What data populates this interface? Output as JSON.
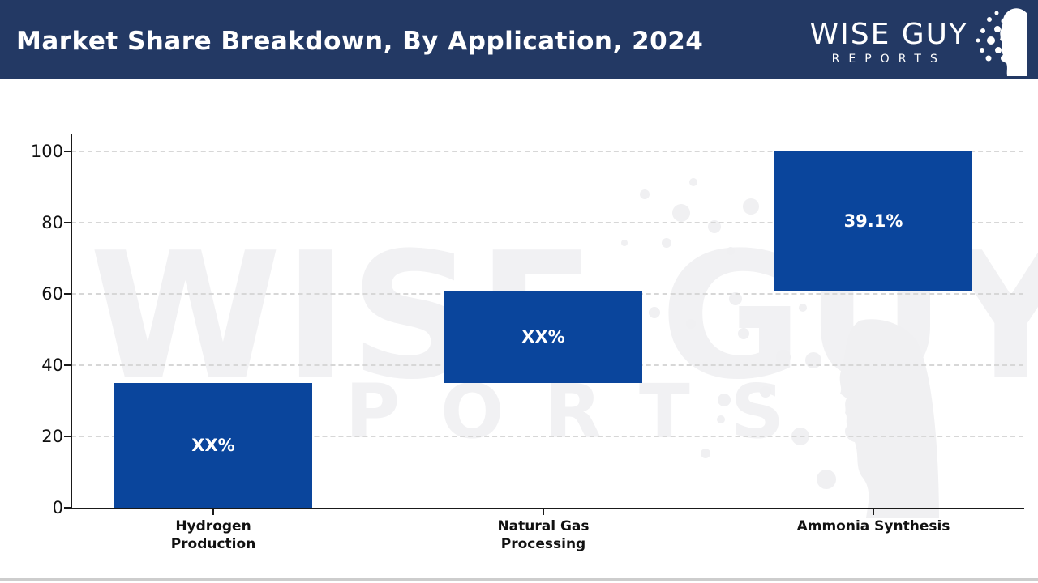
{
  "header": {
    "title": "Market Share Breakdown, By Application, 2024",
    "logo": {
      "line1": "WISE GUY",
      "line2": "REPORTS",
      "face_icon": "dotted-head-profile-icon"
    }
  },
  "watermark": {
    "line1": "WISE GUY",
    "line2": "REPORTS",
    "face_icon": "dotted-head-profile-watermark"
  },
  "colors": {
    "header_background": "#233964",
    "bar_fill": "#0a459c",
    "bar_label_text": "#ffffff",
    "gridline": "#d7d7d7",
    "axis": "#1a1a1a",
    "watermark_gray": "#f1f1f3",
    "footer_rule": "#cdcdcd"
  },
  "chart_data": {
    "type": "bar",
    "variant": "floating-waterfall-segments",
    "title": "Market Share Breakdown, By Application, 2024",
    "categories": [
      "Hydrogen Production",
      "Natural Gas Processing",
      "Ammonia Synthesis"
    ],
    "category_label_lines": [
      [
        "Hydrogen",
        "Production"
      ],
      [
        "Natural Gas",
        "Processing"
      ],
      [
        "Ammonia Synthesis"
      ]
    ],
    "segments": [
      {
        "category": "Hydrogen Production",
        "from": 0,
        "to": 35,
        "label": "XX%"
      },
      {
        "category": "Natural Gas Processing",
        "from": 35,
        "to": 61,
        "label": "XX%"
      },
      {
        "category": "Ammonia Synthesis",
        "from": 61,
        "to": 100,
        "label": "39.1%"
      }
    ],
    "yticks": [
      0,
      20,
      40,
      60,
      80,
      100
    ],
    "ylim": [
      0,
      105
    ],
    "xlabel": "",
    "ylabel": "",
    "legend": "none",
    "grid": {
      "axis": "y",
      "style": "dashed"
    }
  }
}
